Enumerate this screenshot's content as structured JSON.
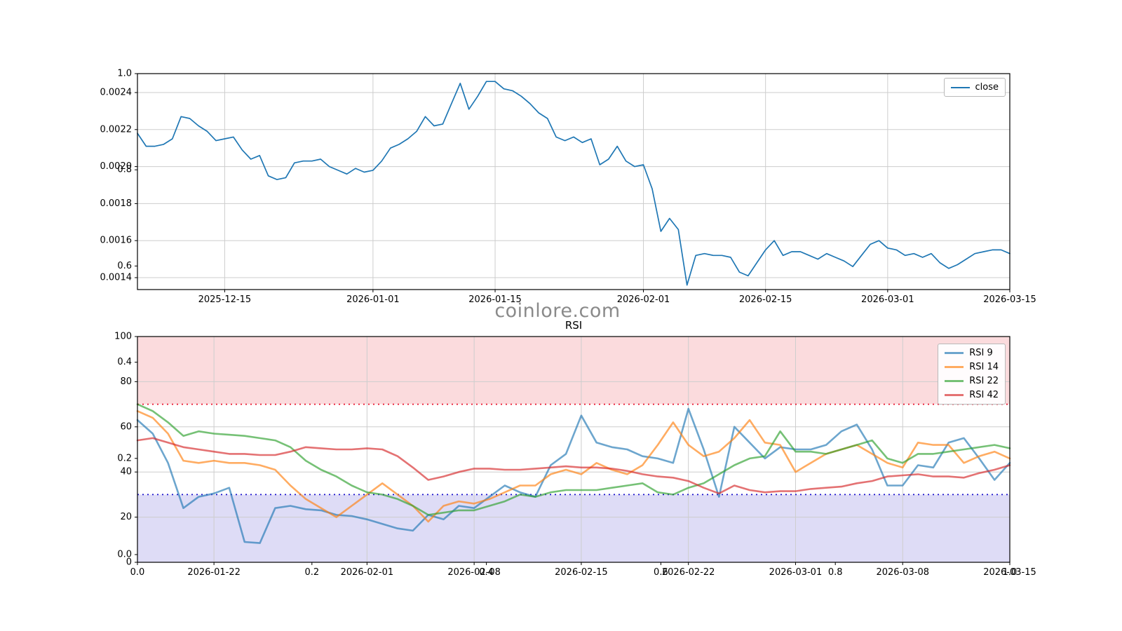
{
  "watermark": "coinlore.com",
  "rsi_title": "RSI",
  "colors": {
    "grid": "#cdcdcd",
    "spine": "#000000",
    "watermark_gray": "#8a8a8a",
    "overbought_band": "#fbdbdd",
    "oversold_band": "#dedcf6",
    "overbought_line": "#e8132d",
    "oversold_line": "#1a12cc"
  },
  "overlay_axis": {
    "y_labels": [
      "1.0",
      "0.8",
      "0.6",
      "0.4",
      "0.2",
      "0.0"
    ],
    "x_labels": [
      "0.0",
      "0.2",
      "0.4",
      "0.6",
      "0.8",
      "1.0"
    ]
  },
  "chart_data": [
    {
      "type": "line",
      "title": "",
      "legend_position": "upper right",
      "grid": true,
      "ylabel": "",
      "xlabel": "",
      "ylim": [
        0.001336,
        0.002502
      ],
      "y_tick_labels": [
        "0.0024",
        "0.0022",
        "0.0020",
        "0.0018",
        "0.0016",
        "0.0014"
      ],
      "y_tick_values": [
        0.0024,
        0.0022,
        0.002,
        0.0018,
        0.0016,
        0.0014
      ],
      "x_tick_labels": [
        "2025-12-15",
        "2026-01-01",
        "2026-01-15",
        "2026-02-01",
        "2026-02-15",
        "2026-03-01",
        "2026-03-15"
      ],
      "x_tick_positions": [
        10,
        27,
        41,
        58,
        72,
        86,
        100
      ],
      "series": [
        {
          "name": "close",
          "color": "#1f77b4",
          "values": [
            0.00218,
            0.00211,
            0.00211,
            0.00212,
            0.00215,
            0.00227,
            0.00226,
            0.00222,
            0.00219,
            0.00214,
            0.00215,
            0.00216,
            0.00209,
            0.00204,
            0.00206,
            0.00195,
            0.00193,
            0.00194,
            0.00202,
            0.00203,
            0.00203,
            0.00204,
            0.002,
            0.00198,
            0.00196,
            0.00199,
            0.00197,
            0.00198,
            0.00203,
            0.0021,
            0.00212,
            0.00215,
            0.00219,
            0.00227,
            0.00222,
            0.00223,
            0.00234,
            0.00245,
            0.00231,
            0.00238,
            0.00246,
            0.00246,
            0.00242,
            0.00241,
            0.00238,
            0.00234,
            0.00229,
            0.00226,
            0.00216,
            0.00214,
            0.00216,
            0.00213,
            0.00215,
            0.00201,
            0.00204,
            0.00211,
            0.00203,
            0.002,
            0.00201,
            0.00188,
            0.00165,
            0.00172,
            0.00166,
            0.00136,
            0.00152,
            0.00153,
            0.00152,
            0.00152,
            0.00151,
            0.00143,
            0.00141,
            0.00148,
            0.00155,
            0.0016,
            0.00152,
            0.00154,
            0.00154,
            0.00152,
            0.0015,
            0.00153,
            0.00151,
            0.00149,
            0.00146,
            0.00152,
            0.00158,
            0.0016,
            0.00156,
            0.00155,
            0.00152,
            0.00153,
            0.00151,
            0.00153,
            0.00148,
            0.00145,
            0.00147,
            0.0015,
            0.00153,
            0.00154,
            0.00155,
            0.00155,
            0.00153
          ]
        }
      ]
    },
    {
      "type": "line",
      "title": "RSI",
      "legend_position": "upper right",
      "grid": true,
      "ylim": [
        0,
        100
      ],
      "y_tick_labels": [
        "100",
        "80",
        "60",
        "40",
        "20",
        "0"
      ],
      "y_tick_values": [
        100,
        80,
        60,
        40,
        20,
        0
      ],
      "x_tick_labels": [
        "2026-01-22",
        "2026-02-01",
        "2026-02-08",
        "2026-02-15",
        "2026-02-22",
        "2026-03-01",
        "2026-03-08",
        "2026-03-15"
      ],
      "x_tick_positions": [
        5,
        15,
        22,
        29,
        36,
        43,
        50,
        57
      ],
      "hlines": [
        {
          "value": 70,
          "color": "#e8132d",
          "style": "dotted"
        },
        {
          "value": 30,
          "color": "#1a12cc",
          "style": "dotted"
        }
      ],
      "bands": [
        {
          "from": 70,
          "to": 100,
          "color": "#fbdbdd"
        },
        {
          "from": 0,
          "to": 30,
          "color": "#dedcf6"
        }
      ],
      "series": [
        {
          "name": "RSI 9",
          "color": "#1f77b4",
          "values": [
            63,
            57,
            44,
            24,
            29,
            30.5,
            33,
            9,
            8.5,
            24,
            25,
            23.5,
            23,
            21,
            20.5,
            19,
            17,
            15,
            14,
            21,
            19,
            25,
            24,
            29,
            34,
            31,
            29,
            43,
            48,
            65,
            53,
            51,
            50,
            47,
            46,
            44,
            68,
            50,
            29,
            60,
            53,
            46,
            51,
            50,
            50,
            52,
            58,
            61,
            50,
            34,
            34,
            43,
            42,
            53,
            55,
            46,
            36.5,
            44
          ]
        },
        {
          "name": "RSI 14",
          "color": "#ff7f0e",
          "values": [
            67,
            64,
            57,
            45,
            44,
            45,
            44,
            44,
            43,
            41,
            34,
            28,
            24,
            20,
            25,
            30,
            35,
            30,
            25,
            18,
            25,
            27,
            26,
            28,
            31,
            34,
            34,
            39,
            41,
            39,
            44,
            41,
            39,
            43,
            52,
            62,
            52,
            47,
            49,
            55,
            63,
            53,
            52,
            40,
            44,
            48,
            50,
            52,
            48,
            44,
            42,
            53,
            52,
            52,
            44,
            47,
            49,
            46
          ]
        },
        {
          "name": "RSI 22",
          "color": "#2ca02c",
          "values": [
            70,
            67,
            62,
            56,
            58,
            57,
            56.5,
            56,
            55,
            54,
            51,
            45,
            41,
            38,
            34,
            31,
            30,
            28,
            25,
            21,
            22,
            23,
            23,
            25,
            27,
            30,
            29,
            31,
            32,
            32,
            32,
            33,
            34,
            35,
            31,
            30,
            33,
            35,
            39,
            43,
            46,
            47,
            58,
            49,
            49,
            48,
            50,
            52,
            54,
            46,
            44,
            48,
            48,
            49,
            50,
            51,
            52,
            50.5
          ]
        },
        {
          "name": "RSI 42",
          "color": "#d62728",
          "values": [
            54,
            55,
            53,
            51,
            50,
            49,
            48,
            48,
            47.5,
            47.5,
            49,
            51,
            50.5,
            50,
            50,
            50.5,
            50,
            47,
            42,
            36.5,
            38,
            40,
            41.5,
            41.5,
            41,
            41,
            41.5,
            42,
            42.5,
            42,
            42,
            41.5,
            40.5,
            39,
            38,
            37.5,
            36,
            33,
            30.5,
            34,
            32,
            31,
            31.5,
            31.5,
            32.5,
            33,
            33.5,
            35,
            36,
            38,
            38.5,
            39,
            38,
            38,
            37.5,
            39.5,
            41,
            43
          ]
        }
      ]
    }
  ]
}
